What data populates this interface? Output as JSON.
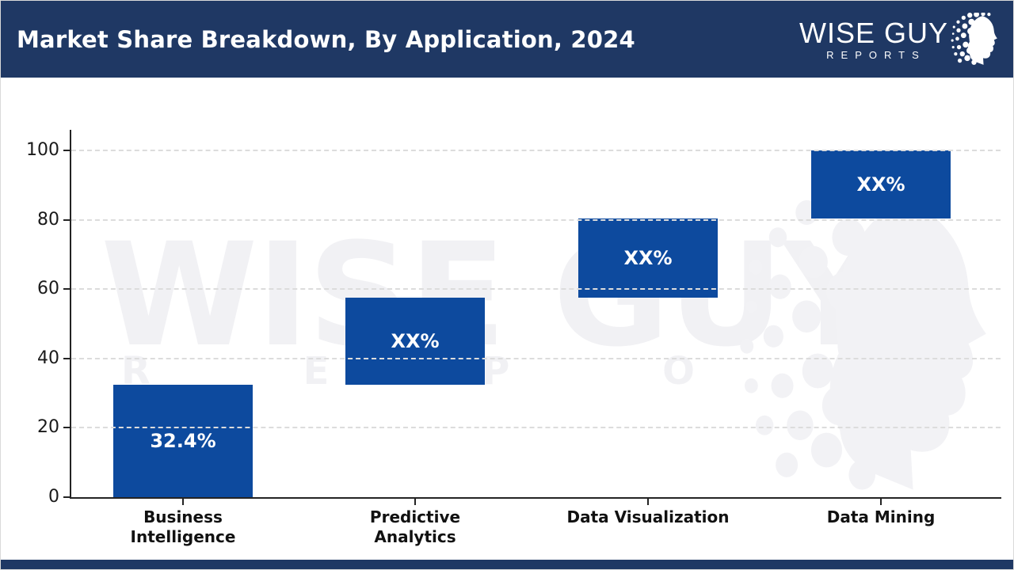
{
  "header": {
    "title": "Market Share Breakdown, By Application, 2024",
    "bg_color": "#1f3864",
    "logo": {
      "name": "WISE GUY",
      "tagline": "REPORTS"
    }
  },
  "watermark": {
    "name": "WISE GUY",
    "tagline": "R E P O R T S"
  },
  "chart_data": {
    "type": "bar",
    "subtype": "waterfall",
    "title": "Market Share Breakdown, By Application, 2024",
    "categories": [
      "Business Intelligence",
      "Predictive Analytics",
      "Data Visualization",
      "Data Mining"
    ],
    "category_label_lines": [
      [
        "Business",
        "Intelligence"
      ],
      [
        "Predictive",
        "Analytics"
      ],
      [
        "Data Visualization"
      ],
      [
        "Data Mining"
      ]
    ],
    "bars": [
      {
        "category": "Business Intelligence",
        "start": 0,
        "end": 32.4,
        "label": "32.4%"
      },
      {
        "category": "Predictive Analytics",
        "start": 32.4,
        "end": 57.5,
        "label": "XX%"
      },
      {
        "category": "Data Visualization",
        "start": 57.5,
        "end": 80.3,
        "label": "XX%"
      },
      {
        "category": "Data Mining",
        "start": 80.3,
        "end": 100,
        "label": "XX%"
      }
    ],
    "bar_color": "#0d4a9e",
    "bar_label_color": "#ffffff",
    "ylim": [
      0,
      100
    ],
    "yticks": [
      0,
      20,
      40,
      60,
      80,
      100
    ],
    "xlabel": "",
    "ylabel": "",
    "grid": "horizontal-dashed",
    "grid_color": "#dcdcdc",
    "axis_color": "#232323",
    "legend": "none"
  }
}
